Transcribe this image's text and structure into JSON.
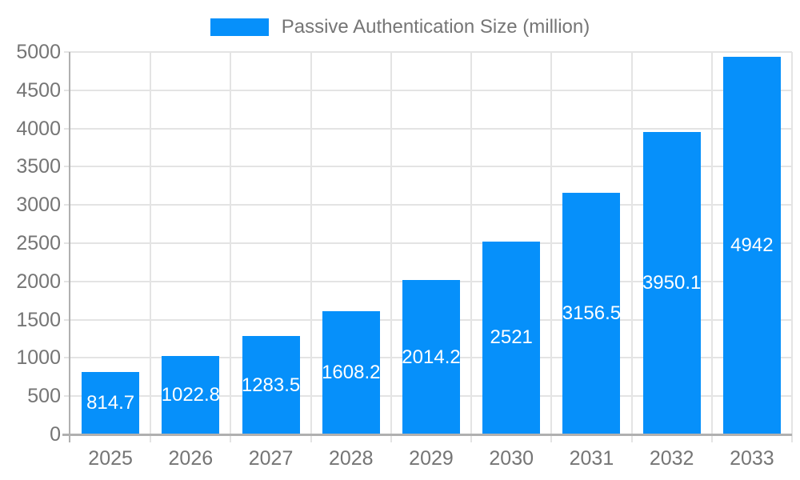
{
  "legend": {
    "items": [
      {
        "label": "Passive Authentication Size (million)",
        "color": "#0690fa"
      }
    ]
  },
  "chart_data": {
    "type": "bar",
    "title": "Passive Authentication Size (million)",
    "legend_position": "top",
    "categories": [
      "2025",
      "2026",
      "2027",
      "2028",
      "2029",
      "2030",
      "2031",
      "2032",
      "2033"
    ],
    "series": [
      {
        "name": "Passive Authentication Size (million)",
        "values": [
          814.7,
          1022.8,
          1283.5,
          1608.2,
          2014.2,
          2521,
          3156.5,
          3950.1,
          4942
        ],
        "labels": [
          "814.7",
          "1022.8",
          "1283.5",
          "1608.2",
          "2014.2",
          "2521",
          "3156.5",
          "3950.1",
          "4942"
        ],
        "color": "#0690fa"
      }
    ],
    "xlabel": "",
    "ylabel": "",
    "ylim": [
      0,
      5000
    ],
    "ytick_step": 500,
    "ytick_labels": [
      "0",
      "500",
      "1000",
      "1500",
      "2000",
      "2500",
      "3000",
      "3500",
      "4000",
      "4500",
      "5000"
    ],
    "grid": true,
    "colors": {
      "bar": "#0690fa",
      "grid": "#e4e4e4",
      "axis": "#b0b0b0",
      "tick_text": "#757575",
      "value_label_text": "#ffffff",
      "background": "#ffffff"
    }
  }
}
